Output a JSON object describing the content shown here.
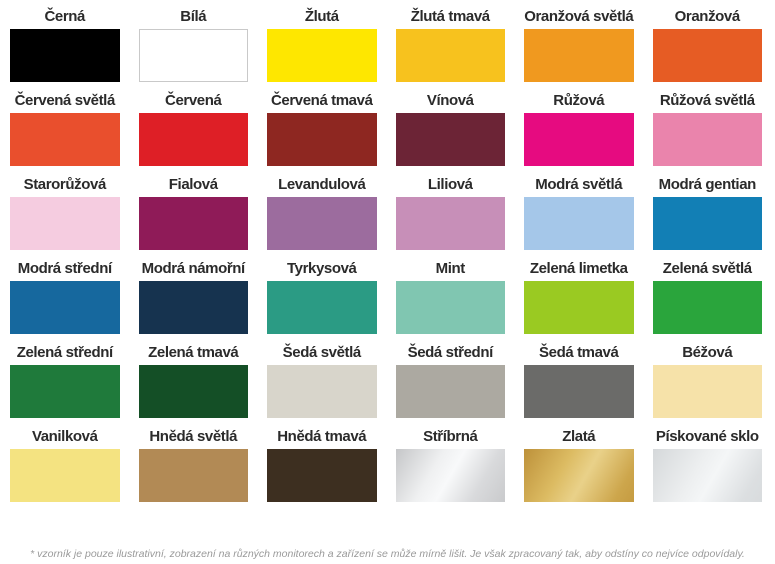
{
  "chart_data": {
    "type": "table",
    "title": "",
    "columns": 6,
    "rows": 6,
    "layout": "label above each color swatch, 6x6 grid",
    "swatches": [
      {
        "label": "Černá",
        "color": "#000000"
      },
      {
        "label": "Bílá",
        "color": "#ffffff",
        "border": "#c9c9c9"
      },
      {
        "label": "Žlutá",
        "color": "#fee700"
      },
      {
        "label": "Žlutá tmavá",
        "color": "#f7c21e"
      },
      {
        "label": "Oranžová světlá",
        "color": "#f0991f"
      },
      {
        "label": "Oranžová",
        "color": "#e65c24"
      },
      {
        "label": "Červená světlá",
        "color": "#e94f2d"
      },
      {
        "label": "Červená",
        "color": "#de1f26"
      },
      {
        "label": "Červená tmavá",
        "color": "#8e2721"
      },
      {
        "label": "Vínová",
        "color": "#6c2436"
      },
      {
        "label": "Růžová",
        "color": "#e60b80"
      },
      {
        "label": "Růžová světlá",
        "color": "#ea84ac"
      },
      {
        "label": "Starorůžová",
        "color": "#f5cce0"
      },
      {
        "label": "Fialová",
        "color": "#8f1b58"
      },
      {
        "label": "Levandulová",
        "color": "#9c6c9e"
      },
      {
        "label": "Liliová",
        "color": "#c78fb8"
      },
      {
        "label": "Modrá světlá",
        "color": "#a5c7e9"
      },
      {
        "label": "Modrá gentian",
        "color": "#127fb5"
      },
      {
        "label": "Modrá střední",
        "color": "#16689e"
      },
      {
        "label": "Modrá námořní",
        "color": "#16334f"
      },
      {
        "label": "Tyrkysová",
        "color": "#2b9b84"
      },
      {
        "label": "Mint",
        "color": "#80c6b1"
      },
      {
        "label": "Zelená limetka",
        "color": "#9aca22"
      },
      {
        "label": "Zelená světlá",
        "color": "#2aa53c"
      },
      {
        "label": "Zelená střední",
        "color": "#1f7a3b"
      },
      {
        "label": "Zelená tmavá",
        "color": "#144f26"
      },
      {
        "label": "Šedá světlá",
        "color": "#d8d5cb"
      },
      {
        "label": "Šedá střední",
        "color": "#aca9a1"
      },
      {
        "label": "Šedá tmavá",
        "color": "#6b6b69"
      },
      {
        "label": "Béžová",
        "color": "#f6e2a9"
      },
      {
        "label": "Vanilková",
        "color": "#f4e381"
      },
      {
        "label": "Hnědá světlá",
        "color": "#b28a55"
      },
      {
        "label": "Hnědá tmavá",
        "color": "#3d2f20"
      },
      {
        "label": "Stříbrná",
        "gradient": "linear-gradient(120deg, #c5c6c8 0%, #eff0f1 35%, #f8f9fa 50%, #d9dadc 75%, #c9cacc 100%)"
      },
      {
        "label": "Zlatá",
        "gradient": "linear-gradient(120deg, #bd913a 0%, #dcbb62 35%, #e9d189 55%, #cda64c 85%, #c59b41 100%)"
      },
      {
        "label": "Pískované sklo",
        "gradient": "linear-gradient(120deg, #d5d8da 0%, #edeff0 40%, #f4f6f7 55%, #dcdfe1 85%, #d8dbdd 100%)"
      }
    ],
    "footnote": "* vzorník je pouze ilustrativní, zobrazení na různých monitorech a zařízení se může mírně lišit. Je však zpracovaný tak, aby odstíny co nejvíce odpovídaly.",
    "label_text_color": "#2b2b2b",
    "footnote_text_color": "#9a9a9a",
    "background": "#ffffff"
  }
}
